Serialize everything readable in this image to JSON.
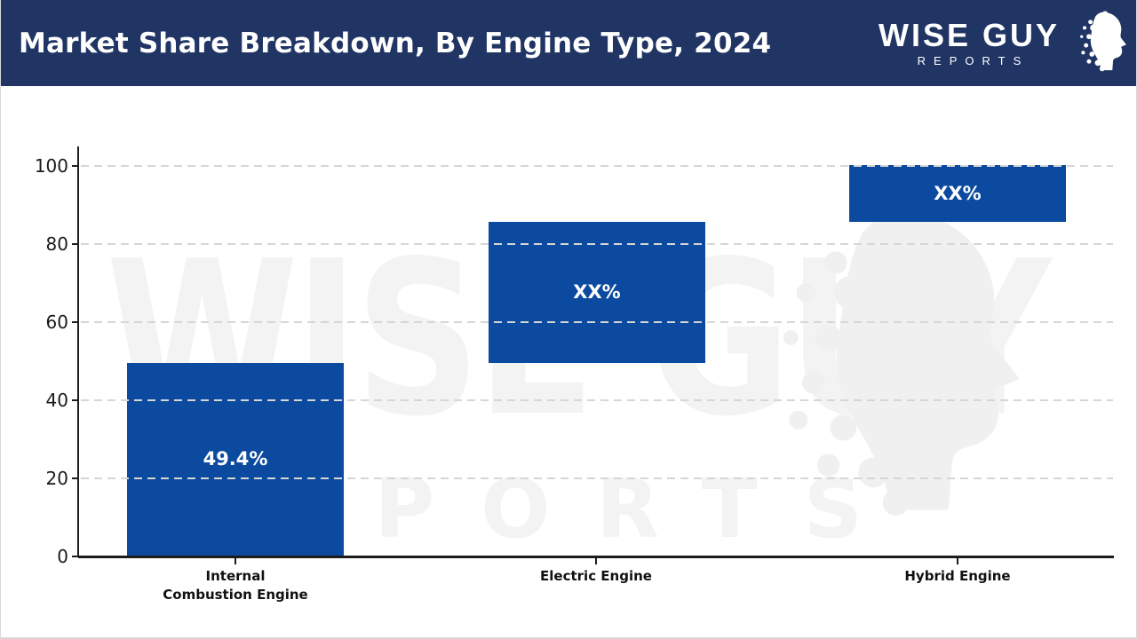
{
  "header": {
    "title": "Market Share Breakdown, By Engine Type, 2024",
    "logo": {
      "name_top": "WISE GUY",
      "name_bottom": "REPORTS"
    }
  },
  "watermark": {
    "line1": "WISE GUY",
    "line2": "REPORTS"
  },
  "chart_data": {
    "type": "bar",
    "subtype": "waterfall-style floating stacked breakdown",
    "title": "Market Share Breakdown, By Engine Type, 2024",
    "categories": [
      [
        "Internal",
        "Combustion Engine"
      ],
      [
        "Electric Engine"
      ],
      [
        "Hybrid Engine"
      ]
    ],
    "segments": [
      {
        "category": "Internal Combustion Engine",
        "start": 0,
        "end": 49.4,
        "value": 49.4,
        "label": "49.4%"
      },
      {
        "category": "Electric Engine",
        "start": 49.4,
        "end": 85.5,
        "value": 36.1,
        "label": "XX%"
      },
      {
        "category": "Hybrid Engine",
        "start": 85.5,
        "end": 100,
        "value": 14.5,
        "label": "XX%"
      }
    ],
    "ylim": [
      0,
      100
    ],
    "yticks": [
      100,
      80,
      60,
      40,
      20,
      0
    ],
    "ytick_labels": [
      "100",
      "80",
      "60",
      "40",
      "20",
      "0"
    ],
    "xlabel": "",
    "ylabel": "",
    "grid": {
      "axis": "y",
      "style": "dashed",
      "color": "#d6d6d6",
      "drawn_over_bars": true
    },
    "legend": null,
    "bar_color": "#0c4aa0",
    "header_bg_color": "#203564",
    "label_on_bar_color": "#ffffff"
  }
}
